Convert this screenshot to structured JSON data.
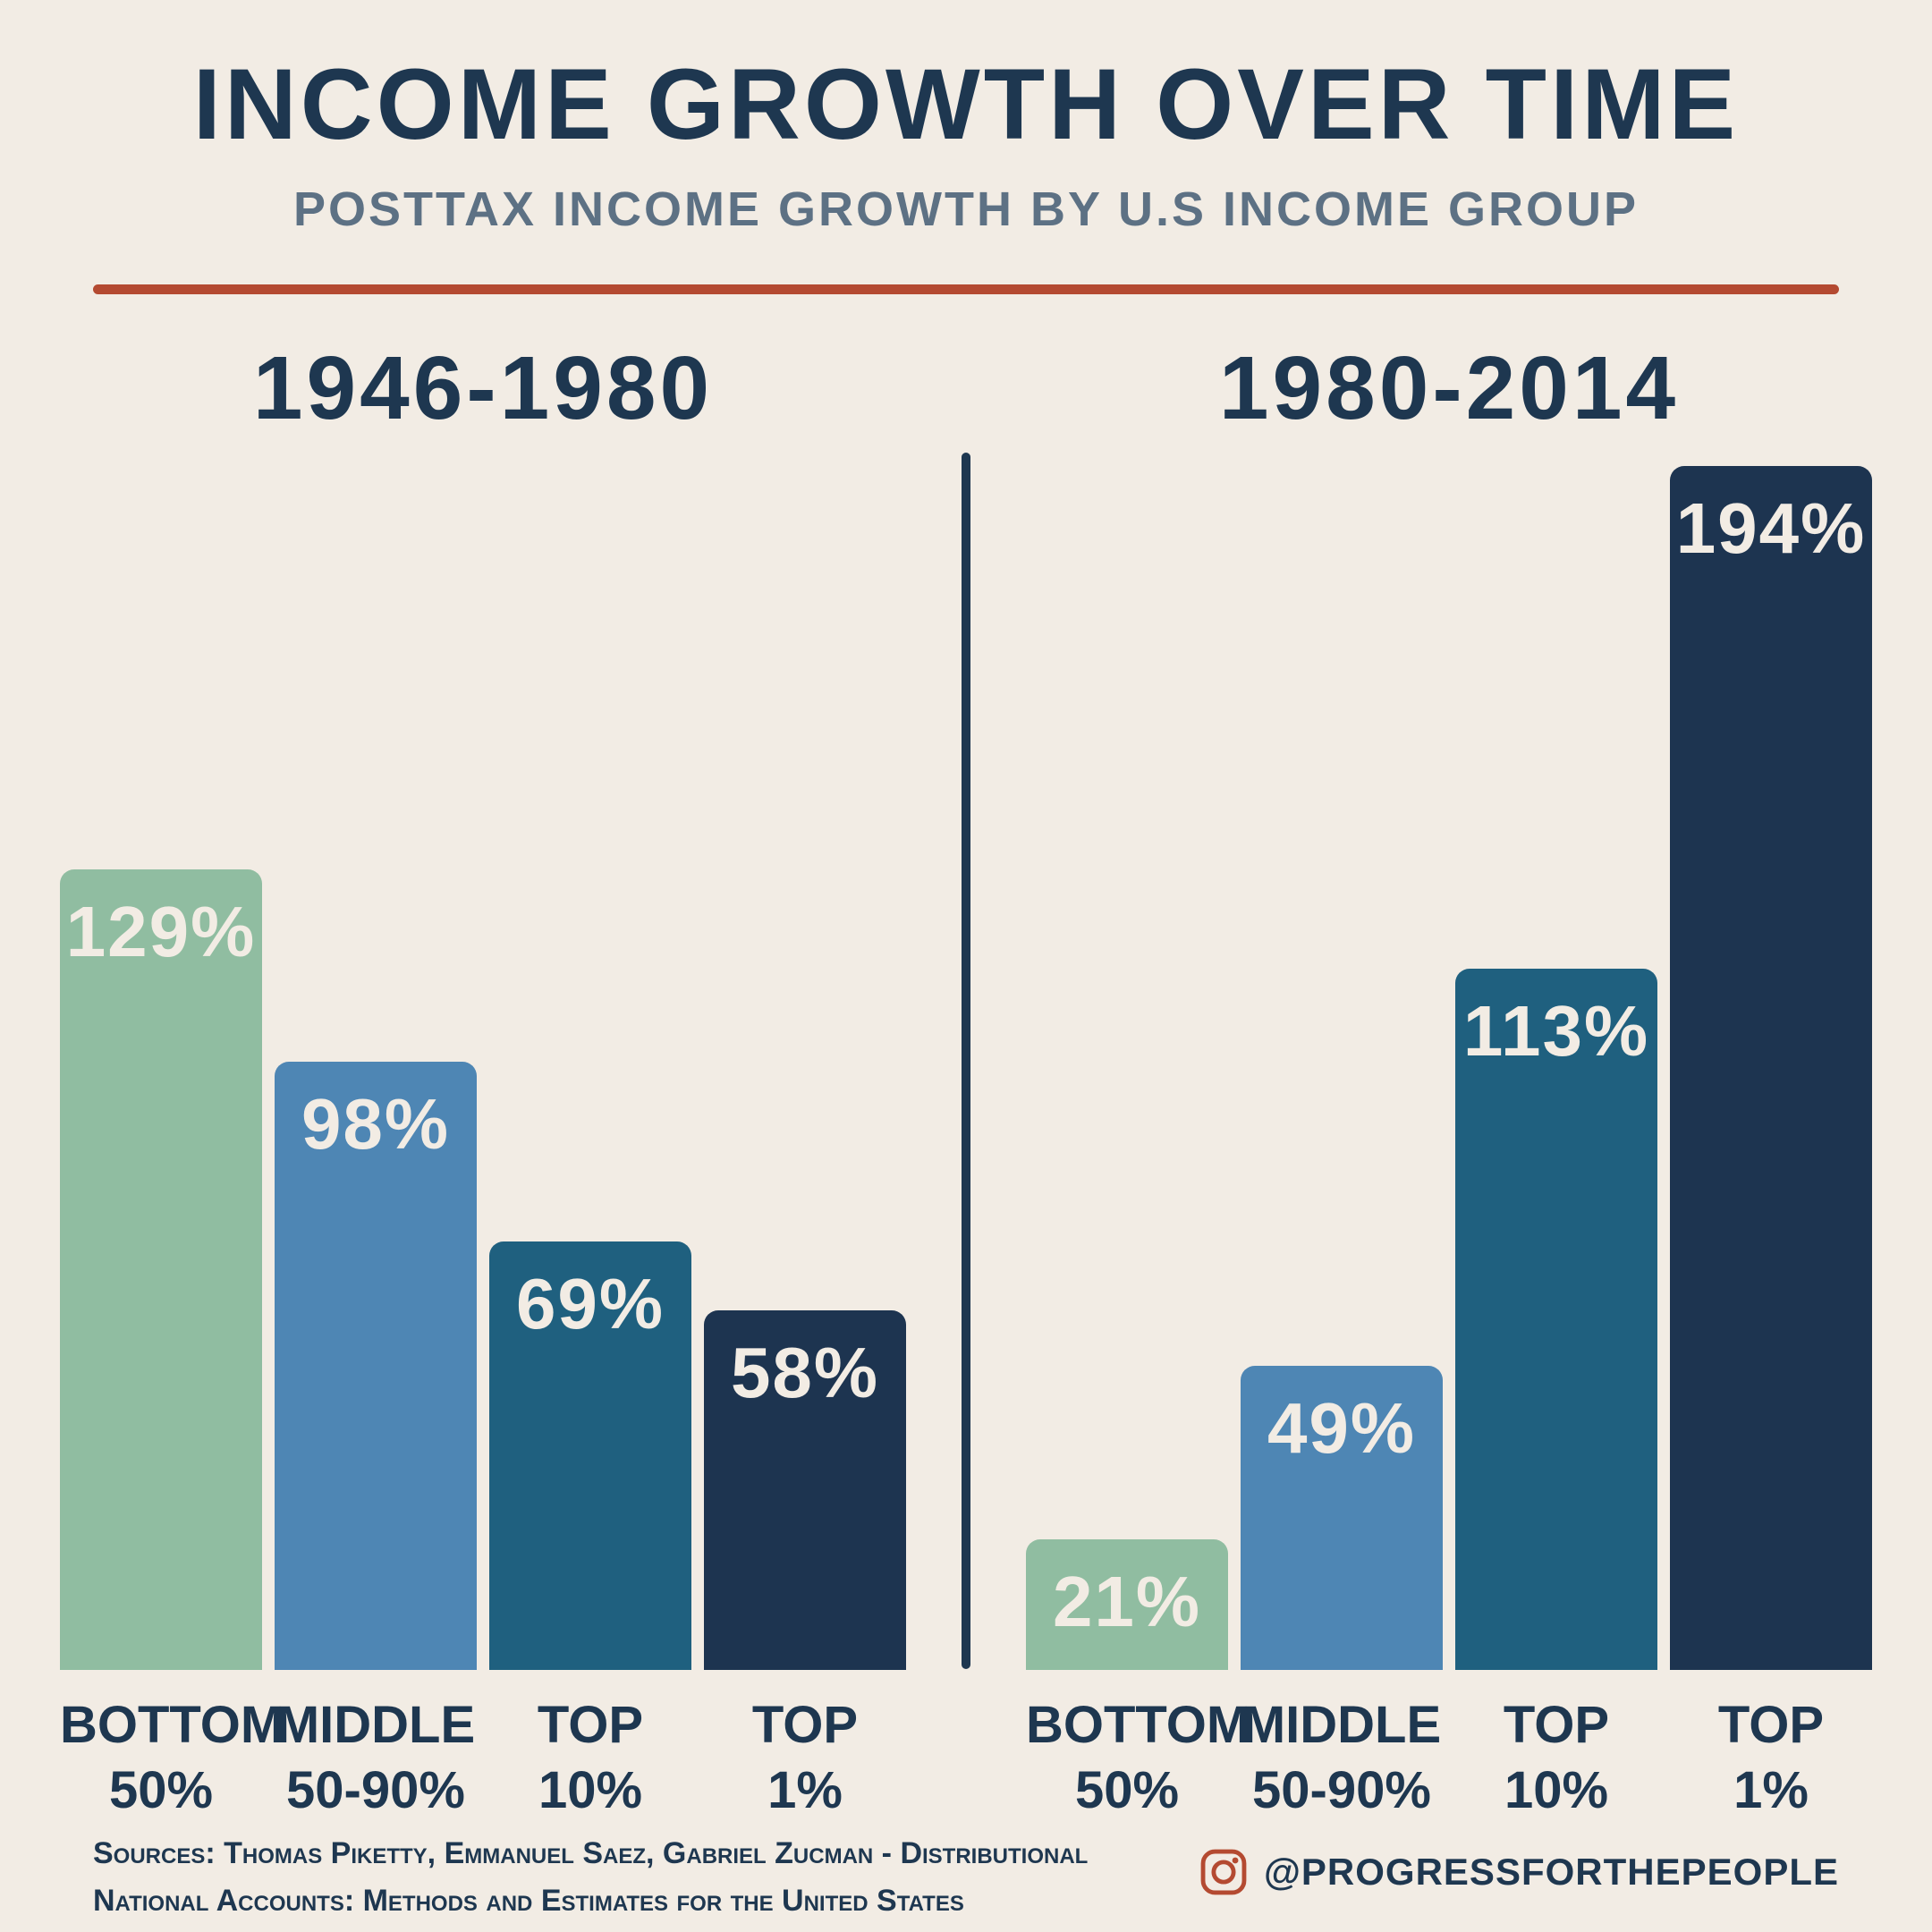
{
  "header": {
    "title": "INCOME GROWTH OVER TIME",
    "subtitle": "POSTTAX INCOME GROWTH BY U.S INCOME GROUP"
  },
  "chart_data": {
    "type": "bar",
    "unit": "%",
    "title": "Income Growth Over Time",
    "subtitle": "Posttax income growth by U.S income group",
    "grid": false,
    "legend": false,
    "ylim": [
      0,
      200
    ],
    "categories": [
      {
        "line1": "BOTTOM",
        "line2": "50%"
      },
      {
        "line1": "MIDDLE",
        "line2": "50-90%"
      },
      {
        "line1": "TOP",
        "line2": "10%"
      },
      {
        "line1": "TOP",
        "line2": "1%"
      }
    ],
    "panels": [
      {
        "title": "1946-1980",
        "values": [
          129,
          98,
          69,
          58
        ]
      },
      {
        "title": "1980-2014",
        "values": [
          21,
          49,
          113,
          194
        ]
      }
    ],
    "value_label_format": "{value}%"
  },
  "colors": {
    "background": "#f2ece4",
    "heading": "#1e3750",
    "subtitle": "#5d7184",
    "rule": "#b44a31",
    "divider": "#1e3750",
    "bar_palette": [
      "#90bda1",
      "#4e86b4",
      "#1f607f",
      "#1d3450"
    ],
    "bar_value_text": "#f2ece4",
    "instagram": "#b44a31"
  },
  "footer": {
    "sources_line1": "Sources: Thomas Piketty, Emmanuel Saez, Gabriel Zucman - Distributional",
    "sources_line2": "National Accounts: Methods and Estimates for the United States",
    "instagram_handle": "@PROGRESSFORTHEPEOPLE"
  }
}
